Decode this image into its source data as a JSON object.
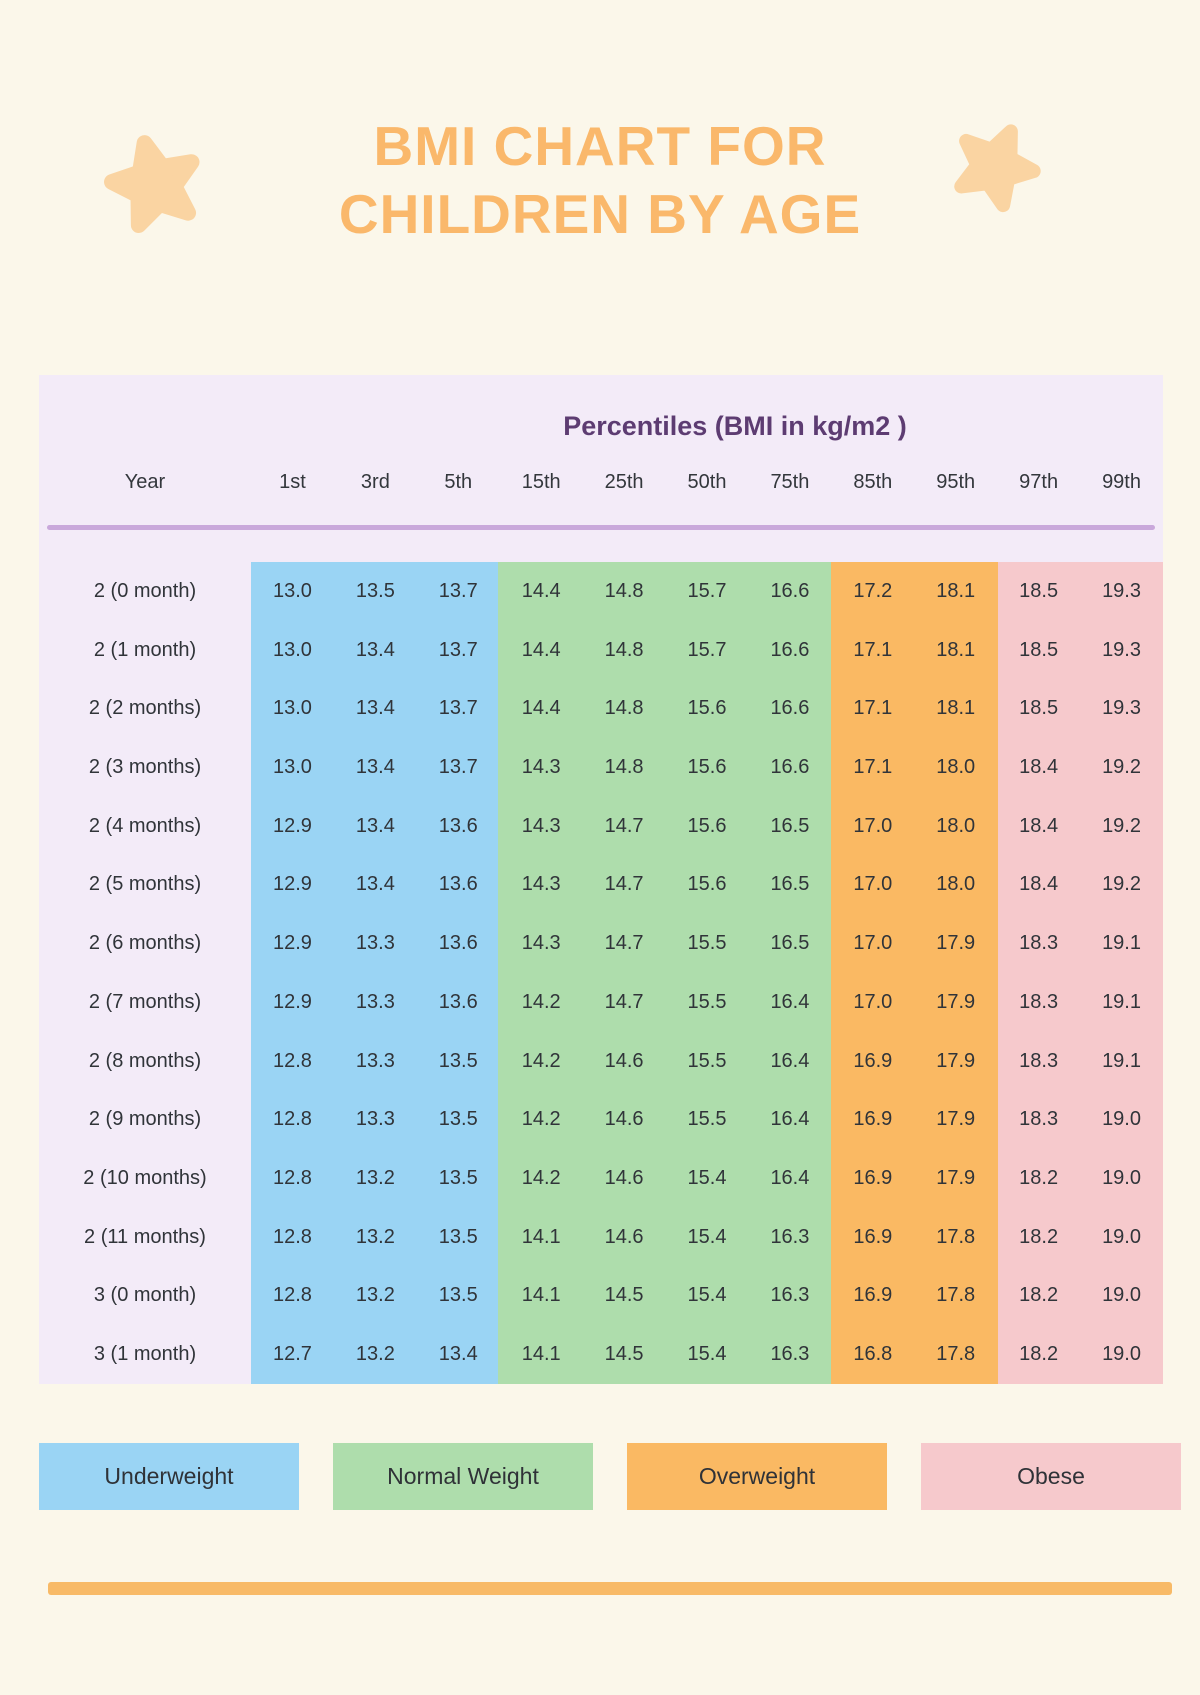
{
  "title": {
    "line1": "BMI CHART FOR",
    "line2": "CHILDREN BY AGE"
  },
  "colors": {
    "background": "#FBF7EA",
    "title_text": "#FAB86B",
    "star": "#FAD4A2",
    "table_background": "#F3EBF8",
    "header_text": "#5D3C72",
    "divider": "#C9A8DB",
    "cell_text": "#303439",
    "bottom_bar": "#F8BA67"
  },
  "legend": {
    "items": [
      {
        "label": "Underweight",
        "color": "#9AD4F4"
      },
      {
        "label": "Normal Weight",
        "color": "#AEDDAC"
      },
      {
        "label": "Overweight",
        "color": "#FAB963"
      },
      {
        "label": "Obese",
        "color": "#F6C9CC"
      }
    ]
  },
  "chart_data": {
    "type": "table",
    "title": "BMI Chart for Children by Age",
    "header": "Percentiles (BMI in kg/m2 )",
    "row_header": "Year",
    "columns": [
      "1st",
      "3rd",
      "5th",
      "15th",
      "25th",
      "50th",
      "75th",
      "85th",
      "95th",
      "97th",
      "99th"
    ],
    "bands": [
      {
        "label": "Underweight",
        "columns": [
          "1st",
          "3rd",
          "5th"
        ],
        "color": "#9AD4F4"
      },
      {
        "label": "Normal Weight",
        "columns": [
          "15th",
          "25th",
          "50th",
          "75th"
        ],
        "color": "#AEDDAC"
      },
      {
        "label": "Overweight",
        "columns": [
          "85th",
          "95th"
        ],
        "color": "#FAB963"
      },
      {
        "label": "Obese",
        "columns": [
          "97th",
          "99th"
        ],
        "color": "#F6C9CC"
      }
    ],
    "rows": [
      {
        "label": "2 (0 month)",
        "values": [
          "13.0",
          "13.5",
          "13.7",
          "14.4",
          "14.8",
          "15.7",
          "16.6",
          "17.2",
          "18.1",
          "18.5",
          "19.3"
        ]
      },
      {
        "label": "2 (1 month)",
        "values": [
          "13.0",
          "13.4",
          "13.7",
          "14.4",
          "14.8",
          "15.7",
          "16.6",
          "17.1",
          "18.1",
          "18.5",
          "19.3"
        ]
      },
      {
        "label": "2 (2 months)",
        "values": [
          "13.0",
          "13.4",
          "13.7",
          "14.4",
          "14.8",
          "15.6",
          "16.6",
          "17.1",
          "18.1",
          "18.5",
          "19.3"
        ]
      },
      {
        "label": "2 (3 months)",
        "values": [
          "13.0",
          "13.4",
          "13.7",
          "14.3",
          "14.8",
          "15.6",
          "16.6",
          "17.1",
          "18.0",
          "18.4",
          "19.2"
        ]
      },
      {
        "label": "2 (4 months)",
        "values": [
          "12.9",
          "13.4",
          "13.6",
          "14.3",
          "14.7",
          "15.6",
          "16.5",
          "17.0",
          "18.0",
          "18.4",
          "19.2"
        ]
      },
      {
        "label": "2 (5 months)",
        "values": [
          "12.9",
          "13.4",
          "13.6",
          "14.3",
          "14.7",
          "15.6",
          "16.5",
          "17.0",
          "18.0",
          "18.4",
          "19.2"
        ]
      },
      {
        "label": "2 (6 months)",
        "values": [
          "12.9",
          "13.3",
          "13.6",
          "14.3",
          "14.7",
          "15.5",
          "16.5",
          "17.0",
          "17.9",
          "18.3",
          "19.1"
        ]
      },
      {
        "label": "2 (7 months)",
        "values": [
          "12.9",
          "13.3",
          "13.6",
          "14.2",
          "14.7",
          "15.5",
          "16.4",
          "17.0",
          "17.9",
          "18.3",
          "19.1"
        ]
      },
      {
        "label": "2 (8 months)",
        "values": [
          "12.8",
          "13.3",
          "13.5",
          "14.2",
          "14.6",
          "15.5",
          "16.4",
          "16.9",
          "17.9",
          "18.3",
          "19.1"
        ]
      },
      {
        "label": "2 (9 months)",
        "values": [
          "12.8",
          "13.3",
          "13.5",
          "14.2",
          "14.6",
          "15.5",
          "16.4",
          "16.9",
          "17.9",
          "18.3",
          "19.0"
        ]
      },
      {
        "label": "2 (10 months)",
        "values": [
          "12.8",
          "13.2",
          "13.5",
          "14.2",
          "14.6",
          "15.4",
          "16.4",
          "16.9",
          "17.9",
          "18.2",
          "19.0"
        ]
      },
      {
        "label": "2 (11 months)",
        "values": [
          "12.8",
          "13.2",
          "13.5",
          "14.1",
          "14.6",
          "15.4",
          "16.3",
          "16.9",
          "17.8",
          "18.2",
          "19.0"
        ]
      },
      {
        "label": "3 (0 month)",
        "values": [
          "12.8",
          "13.2",
          "13.5",
          "14.1",
          "14.5",
          "15.4",
          "16.3",
          "16.9",
          "17.8",
          "18.2",
          "19.0"
        ]
      },
      {
        "label": "3 (1 month)",
        "values": [
          "12.7",
          "13.2",
          "13.4",
          "14.1",
          "14.5",
          "15.4",
          "16.3",
          "16.8",
          "17.8",
          "18.2",
          "19.0"
        ]
      }
    ]
  }
}
